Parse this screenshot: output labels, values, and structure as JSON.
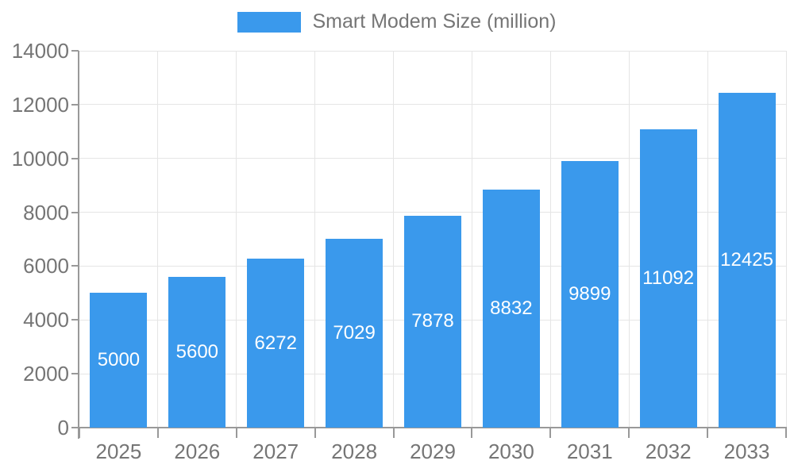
{
  "chart_data": {
    "type": "bar",
    "title": "Smart Modem Size (million)",
    "categories": [
      "2025",
      "2026",
      "2027",
      "2028",
      "2029",
      "2030",
      "2031",
      "2032",
      "2033"
    ],
    "values": [
      5000,
      5600,
      6272,
      7029,
      7878,
      8832,
      9899,
      11092,
      12425
    ],
    "series": [
      {
        "name": "Smart Modem Size (million)",
        "values": [
          5000,
          5600,
          6272,
          7029,
          7878,
          8832,
          9899,
          11092,
          12425
        ]
      }
    ],
    "xlabel": "",
    "ylabel": "",
    "ylim": [
      0,
      14000
    ],
    "yticks": [
      0,
      2000,
      4000,
      6000,
      8000,
      10000,
      12000,
      14000
    ],
    "grid": true,
    "legend_position": "top-center",
    "value_label_position": "inside-center",
    "colors": {
      "bar": "#3a99ec",
      "grid": "#e5e5e5",
      "axis": "#999999",
      "tick_text": "#757575",
      "legend_text": "#757575",
      "value_text": "#ffffff",
      "background": "#ffffff"
    }
  }
}
